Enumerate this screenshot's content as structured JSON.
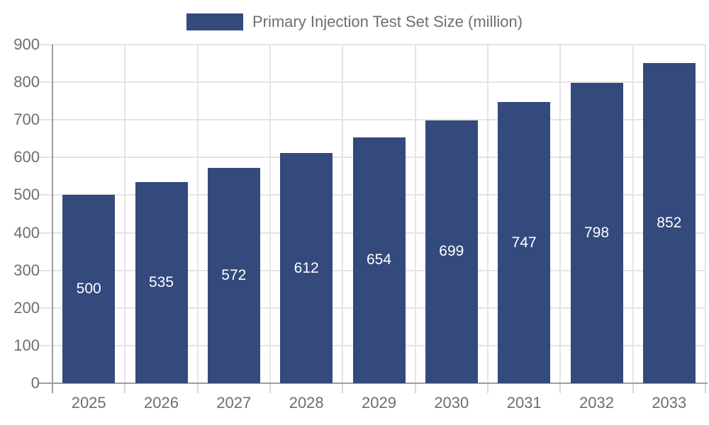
{
  "chart_data": {
    "type": "bar",
    "title": "",
    "legend": "Primary Injection Test Set Size (million)",
    "categories": [
      "2025",
      "2026",
      "2027",
      "2028",
      "2029",
      "2030",
      "2031",
      "2032",
      "2033"
    ],
    "values": [
      500,
      535,
      572,
      612,
      654,
      699,
      747,
      798,
      852
    ],
    "value_labels": [
      "500",
      "535",
      "572",
      "612",
      "654",
      "699",
      "747",
      "798",
      "852"
    ],
    "xlabel": "",
    "ylabel": "",
    "ylim": [
      0,
      900
    ],
    "yticks": [
      0,
      100,
      200,
      300,
      400,
      500,
      600,
      700,
      800,
      900
    ],
    "grid": "both",
    "legend_position": "top-center",
    "colors": {
      "bar": "#344A7D",
      "value_label": "#FFFFFF",
      "axis_line": "#9E9E9E",
      "gridline": "#E4E4E4",
      "minor_tick": "#D8D8D8",
      "tick_label_text": "#6E6E6E",
      "legend_text": "#6E6E6E",
      "background": "#FFFFFF"
    }
  }
}
